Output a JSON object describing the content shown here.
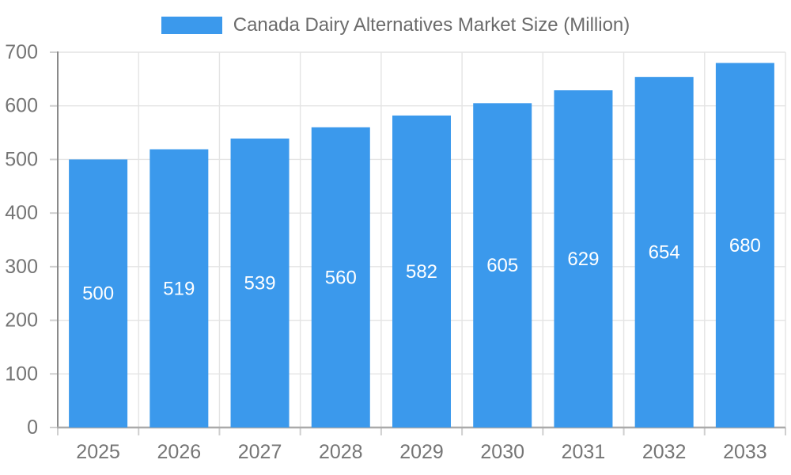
{
  "legend": {
    "label": "Canada Dairy Alternatives Market Size (Million)"
  },
  "chart_data": {
    "type": "bar",
    "title": "Canada Dairy Alternatives Market Size (Million)",
    "series_name": "Canada Dairy Alternatives Market Size (Million)",
    "categories": [
      "2025",
      "2026",
      "2027",
      "2028",
      "2029",
      "2030",
      "2031",
      "2032",
      "2033"
    ],
    "values": [
      500,
      519,
      539,
      560,
      582,
      605,
      629,
      654,
      680
    ],
    "xlabel": "",
    "ylabel": "",
    "ylim": [
      0,
      700
    ],
    "yticks": [
      0,
      100,
      200,
      300,
      400,
      500,
      600,
      700
    ],
    "grid": true,
    "legend_position": "top",
    "value_labels_shown": true
  },
  "colors": {
    "bar": "#3B99EC",
    "gridline": "#e4e4e4",
    "tick": "#cfcfcf",
    "y_axis": "#8a8a8a",
    "x_axis": "#aaaaaa",
    "axis_label": "#757575",
    "title": "#6b6b6b",
    "value_label": "#ffffff",
    "background": "#ffffff"
  }
}
